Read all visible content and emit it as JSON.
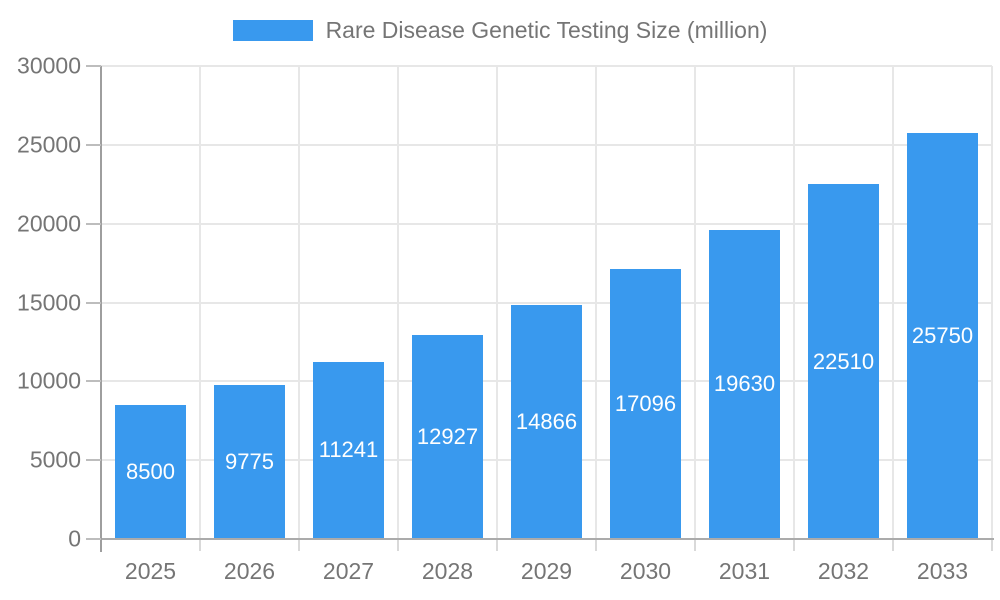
{
  "legend": {
    "label": "Rare Disease Genetic Testing Size (million)"
  },
  "chart_data": {
    "type": "bar",
    "title": "Rare Disease Genetic Testing Size (million)",
    "categories": [
      "2025",
      "2026",
      "2027",
      "2028",
      "2029",
      "2030",
      "2031",
      "2032",
      "2033"
    ],
    "values": [
      8500,
      9775,
      11241,
      12927,
      14866,
      17096,
      19630,
      22510,
      25750
    ],
    "bar_labels": [
      "8500",
      "9775",
      "11241",
      "12927",
      "14866",
      "17096",
      "19630",
      "22510",
      "25750"
    ],
    "xlabel": "",
    "ylabel": "",
    "ylim": [
      0,
      30000
    ],
    "yticks": [
      0,
      5000,
      10000,
      15000,
      20000,
      25000,
      30000
    ],
    "grid": "horizontal-and-vertical",
    "legend_position": "top-center",
    "colors": {
      "bar": "#3999EE",
      "bar_value_text": "#ffffff",
      "axis_line": "#9e9e9e",
      "grid_line": "#e7e7e7",
      "tick_text": "#757575",
      "legend_text": "#757575"
    }
  }
}
